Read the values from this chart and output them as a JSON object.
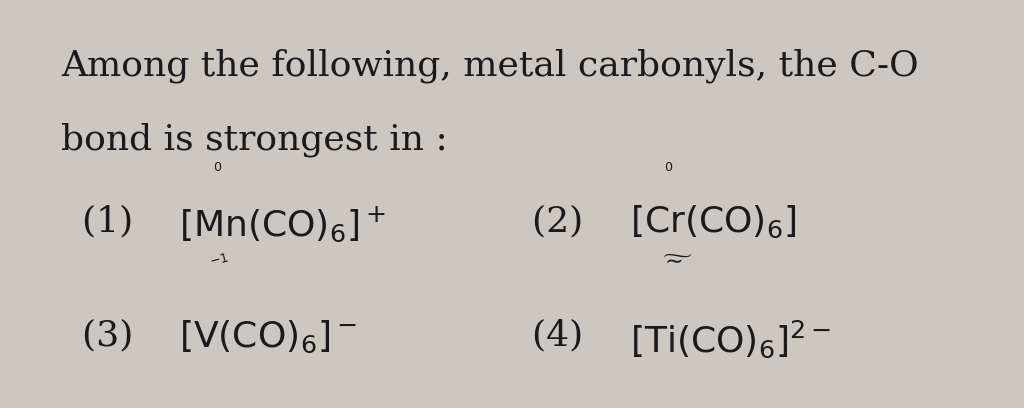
{
  "background_color": "#ccc8c0",
  "text_color": "#1a1a1a",
  "title_line1": "Among the following, metal carbonyls, the C-O",
  "title_line2": "bond is strongest in :",
  "font_size_title": 26,
  "font_size_options": 26,
  "font_size_super": 14,
  "font_family": "DejaVu Serif"
}
